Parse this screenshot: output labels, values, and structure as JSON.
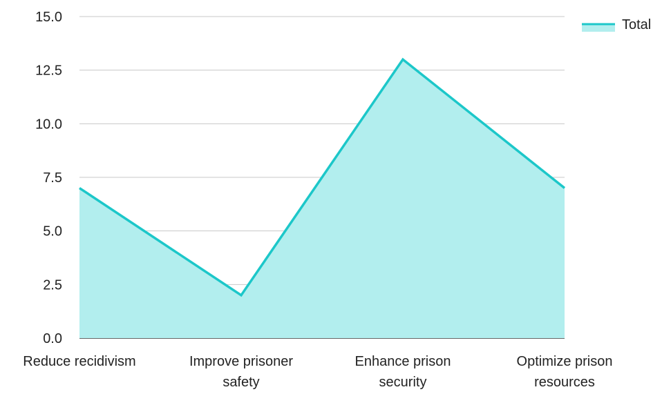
{
  "chart_data": {
    "type": "area",
    "categories": [
      "Reduce recidivism",
      "Improve prisoner safety",
      "Enhance prison security",
      "Optimize prison resources"
    ],
    "category_lines": [
      [
        "Reduce recidivism"
      ],
      [
        "Improve prisoner",
        "safety"
      ],
      [
        "Enhance prison",
        "security"
      ],
      [
        "Optimize prison",
        "resources"
      ]
    ],
    "series": [
      {
        "name": "Total",
        "values": [
          7,
          2,
          13,
          7
        ]
      }
    ],
    "ylim": [
      0,
      15
    ],
    "yticks": [
      "0.0",
      "2.5",
      "5.0",
      "7.5",
      "10.0",
      "12.5",
      "15.0"
    ],
    "ytick_values": [
      0,
      2.5,
      5,
      7.5,
      10,
      12.5,
      15
    ],
    "grid": true,
    "legend_position": "top-right",
    "colors": {
      "line": "#1cc7c9",
      "fill": "#b2eeee",
      "grid": "#c8c8c8",
      "axis": "#333333"
    }
  }
}
